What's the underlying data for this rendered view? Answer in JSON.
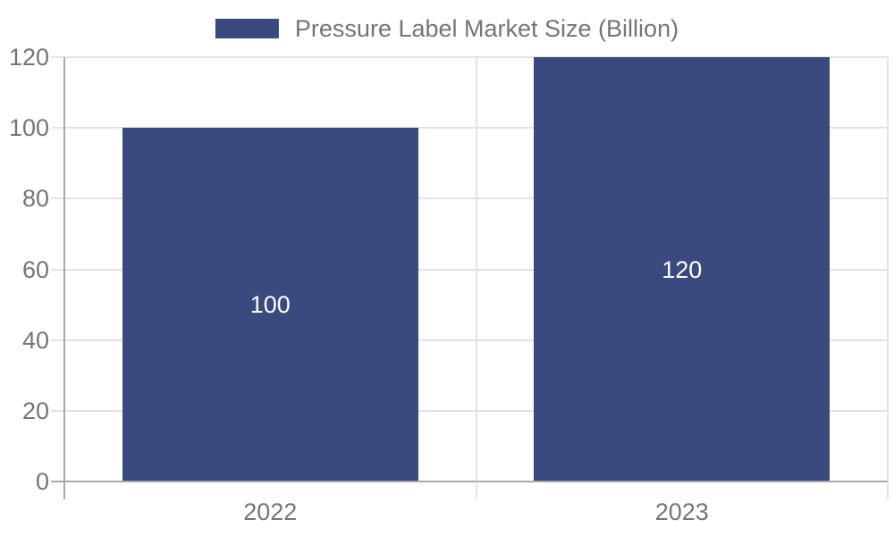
{
  "chart_data": {
    "type": "bar",
    "title": "Pressure Label Market Size (Billion)",
    "categories": [
      "2022",
      "2023"
    ],
    "values": [
      100,
      120
    ],
    "value_labels": [
      "100",
      "120"
    ],
    "series": [
      {
        "name": "Pressure Label Market Size (Billion)",
        "values": [
          100,
          120
        ]
      }
    ],
    "xlabel": "",
    "ylabel": "",
    "ylim": [
      0,
      120
    ],
    "yticks": [
      0,
      20,
      40,
      60,
      80,
      100,
      120
    ],
    "grid": true,
    "legend_position": "top-center",
    "legend_entries": [
      "Pressure Label Market Size (Billion)"
    ]
  },
  "colors": {
    "bar": "#3A4A7F",
    "axis_line": "#a9a9a9",
    "gridline": "#e3e3e3",
    "tick_text": "#757575",
    "legend_text": "#757575",
    "value_text": "#ffffff",
    "background": "#ffffff"
  }
}
